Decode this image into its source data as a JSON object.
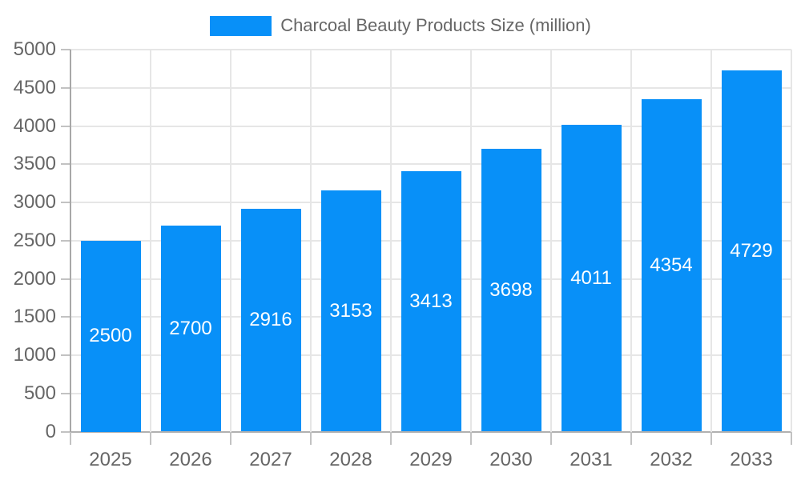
{
  "chart_data": {
    "type": "bar",
    "title": "Charcoal Beauty Products Size (million)",
    "legend_position": "top",
    "categories": [
      "2025",
      "2026",
      "2027",
      "2028",
      "2029",
      "2030",
      "2031",
      "2032",
      "2033"
    ],
    "series": [
      {
        "name": "Charcoal Beauty Products Size (million)",
        "values": [
          2500,
          2700,
          2916,
          3153,
          3413,
          3698,
          4011,
          4354,
          4729
        ]
      }
    ],
    "data_labels": [
      "2500",
      "2700",
      "2916",
      "3153",
      "3413",
      "3698",
      "4011",
      "4354",
      "4729"
    ],
    "xlabel": "",
    "ylabel": "",
    "ylim": [
      0,
      5000
    ],
    "ytick_step": 500,
    "yticks": [
      0,
      500,
      1000,
      1500,
      2000,
      2500,
      3000,
      3500,
      4000,
      4500,
      5000
    ],
    "grid": "on",
    "colors": {
      "bar": "#0890f8",
      "bar_value_label": "#ffffff",
      "axis_label": "#666666",
      "legend_text": "#666666",
      "grid_line": "#e6e6e6",
      "axis_line": "#b0b0b0"
    }
  }
}
